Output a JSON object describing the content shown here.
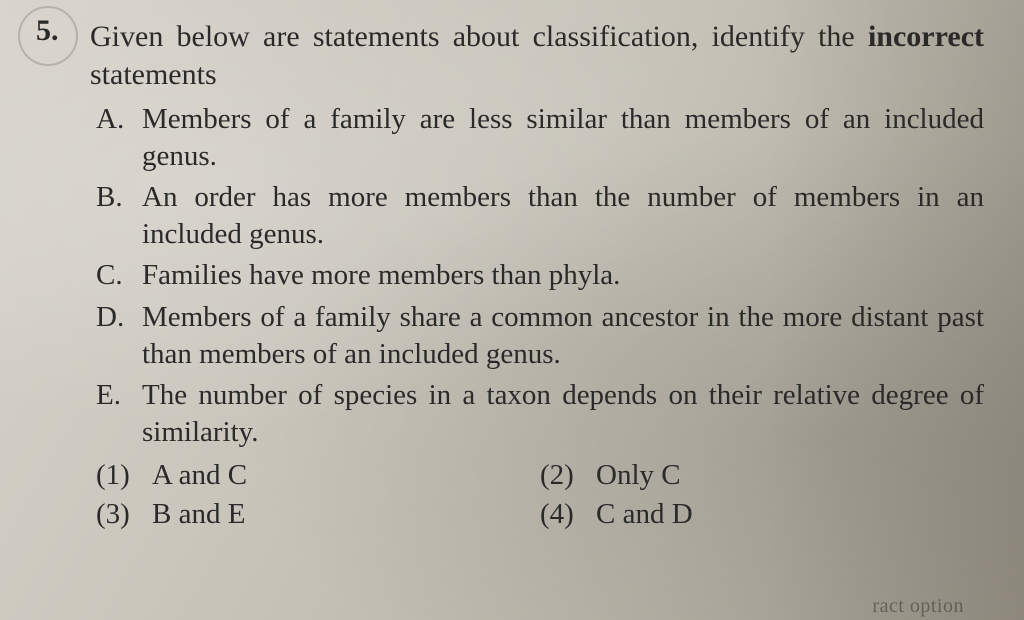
{
  "question": {
    "number": "5.",
    "stem_part1": "Given below are statements about classification, identify the ",
    "stem_bold": "incorrect",
    "stem_part2": " statements"
  },
  "statements": [
    {
      "letter": "A.",
      "text": "Members of a family are less similar than members of an included genus."
    },
    {
      "letter": "B.",
      "text": "An order has more members than the number of members in an included genus."
    },
    {
      "letter": "C.",
      "text": "Families have more members than phyla."
    },
    {
      "letter": "D.",
      "text": "Members of a family share a common ancestor in the more distant past than members of an included genus."
    },
    {
      "letter": "E.",
      "text": "The number of species in a taxon depends on their relative degree of similarity."
    }
  ],
  "options": [
    {
      "num": "(1)",
      "text": "A and C"
    },
    {
      "num": "(2)",
      "text": "Only C"
    },
    {
      "num": "(3)",
      "text": "B and E"
    },
    {
      "num": "(4)",
      "text": "C and D"
    }
  ],
  "cutoff_text": "ract option"
}
